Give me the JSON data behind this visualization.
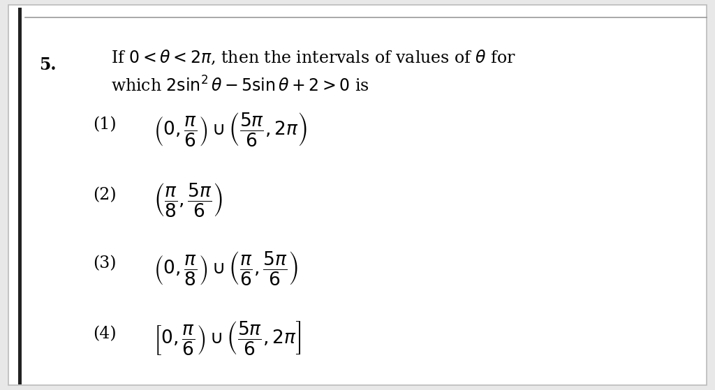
{
  "background_color": "#e8e8e8",
  "panel_color": "#ffffff",
  "text_color": "#000000",
  "left_bar_color": "#222222",
  "top_line_color": "#999999",
  "question_number": "5.",
  "font_size_question": 17,
  "font_size_options": 19,
  "font_size_number": 17,
  "q_line1": "If $0 < \\theta < 2\\pi$, then the intervals of values of $\\theta$ for",
  "q_line2": "which $2\\sin^2\\theta - 5\\sin\\theta + 2 > 0$ is",
  "opt1_num": "(1)",
  "opt1_expr": "$\\left(0, \\dfrac{\\pi}{6}\\right) \\cup \\left(\\dfrac{5\\pi}{6}, 2\\pi\\right)$",
  "opt2_num": "(2)",
  "opt2_expr": "$\\left(\\dfrac{\\pi}{8}, \\dfrac{5\\pi}{6}\\right)$",
  "opt3_num": "(3)",
  "opt3_expr": "$\\left(0, \\dfrac{\\pi}{8}\\right) \\cup \\left(\\dfrac{\\pi}{6}, \\dfrac{5\\pi}{6}\\right)$",
  "opt4_num": "(4)",
  "opt4_expr": "$\\left[0, \\dfrac{\\pi}{6}\\right) \\cup \\left(\\dfrac{5\\pi}{6}, 2\\pi\\right]$"
}
